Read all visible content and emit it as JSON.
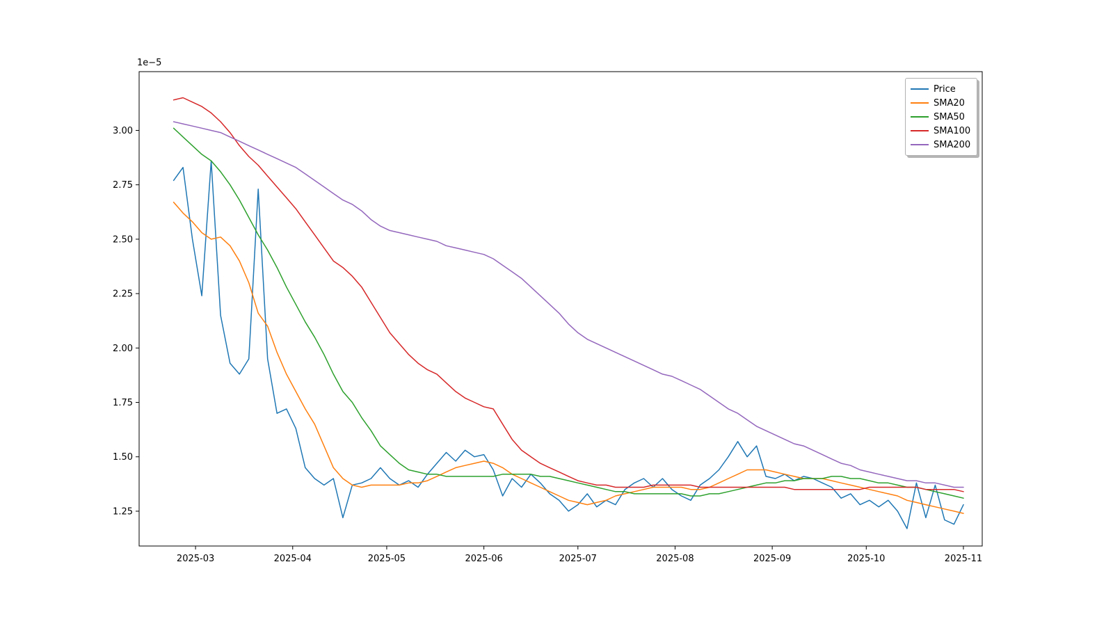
{
  "figure": {
    "background": "#ffffff"
  },
  "chart_data": {
    "type": "line",
    "title": "",
    "xlabel": "",
    "ylabel": "",
    "offset_text": "1e−5",
    "grid": false,
    "legend_position": "upper right",
    "xlim": [
      -11,
      258
    ],
    "ylim": [
      1.09,
      3.27
    ],
    "xtick_days": [
      7,
      38,
      68,
      99,
      129,
      160,
      191,
      221,
      252
    ],
    "xtick_labels": [
      "2025-03",
      "2025-04",
      "2025-05",
      "2025-06",
      "2025-07",
      "2025-08",
      "2025-09",
      "2025-10",
      "2025-11"
    ],
    "ytick_values": [
      1.25,
      1.5,
      1.75,
      2.0,
      2.25,
      2.5,
      2.75,
      3.0
    ],
    "ytick_labels": [
      "1.25",
      "1.50",
      "1.75",
      "2.00",
      "2.25",
      "2.50",
      "2.75",
      "3.00"
    ],
    "x": [
      0,
      3,
      6,
      9,
      12,
      15,
      18,
      21,
      24,
      27,
      30,
      33,
      36,
      39,
      42,
      45,
      48,
      51,
      54,
      57,
      60,
      63,
      66,
      69,
      72,
      75,
      78,
      81,
      84,
      87,
      90,
      93,
      96,
      99,
      102,
      105,
      108,
      111,
      114,
      117,
      120,
      123,
      126,
      129,
      132,
      135,
      138,
      141,
      144,
      147,
      150,
      153,
      156,
      159,
      162,
      165,
      168,
      171,
      174,
      177,
      180,
      183,
      186,
      189,
      192,
      195,
      198,
      201,
      204,
      207,
      210,
      213,
      216,
      219,
      222,
      225,
      228,
      231,
      234,
      237,
      240,
      243,
      246,
      249,
      252
    ],
    "series": [
      {
        "name": "Price",
        "color": "#1f77b4",
        "values": [
          2.77,
          2.83,
          2.5,
          2.24,
          2.86,
          2.15,
          1.93,
          1.88,
          1.95,
          2.73,
          1.95,
          1.7,
          1.72,
          1.63,
          1.45,
          1.4,
          1.37,
          1.4,
          1.22,
          1.37,
          1.38,
          1.4,
          1.45,
          1.4,
          1.37,
          1.39,
          1.36,
          1.42,
          1.47,
          1.52,
          1.48,
          1.53,
          1.5,
          1.51,
          1.44,
          1.32,
          1.4,
          1.36,
          1.42,
          1.38,
          1.33,
          1.3,
          1.25,
          1.28,
          1.33,
          1.27,
          1.3,
          1.28,
          1.35,
          1.38,
          1.4,
          1.36,
          1.4,
          1.35,
          1.32,
          1.3,
          1.37,
          1.4,
          1.44,
          1.5,
          1.57,
          1.5,
          1.55,
          1.41,
          1.4,
          1.42,
          1.39,
          1.41,
          1.4,
          1.38,
          1.36,
          1.31,
          1.33,
          1.28,
          1.3,
          1.27,
          1.3,
          1.25,
          1.17,
          1.38,
          1.22,
          1.37,
          1.21,
          1.19,
          1.28
        ]
      },
      {
        "name": "SMA20",
        "color": "#ff7f0e",
        "values": [
          2.67,
          2.62,
          2.58,
          2.53,
          2.5,
          2.51,
          2.47,
          2.4,
          2.3,
          2.16,
          2.1,
          1.98,
          1.88,
          1.8,
          1.72,
          1.65,
          1.55,
          1.45,
          1.4,
          1.37,
          1.36,
          1.37,
          1.37,
          1.37,
          1.37,
          1.38,
          1.38,
          1.39,
          1.41,
          1.43,
          1.45,
          1.46,
          1.47,
          1.48,
          1.47,
          1.45,
          1.42,
          1.4,
          1.38,
          1.36,
          1.34,
          1.32,
          1.3,
          1.29,
          1.28,
          1.29,
          1.3,
          1.32,
          1.33,
          1.34,
          1.35,
          1.36,
          1.36,
          1.36,
          1.36,
          1.35,
          1.35,
          1.36,
          1.38,
          1.4,
          1.42,
          1.44,
          1.44,
          1.44,
          1.43,
          1.42,
          1.41,
          1.4,
          1.4,
          1.4,
          1.39,
          1.38,
          1.37,
          1.36,
          1.35,
          1.34,
          1.33,
          1.32,
          1.3,
          1.29,
          1.28,
          1.27,
          1.26,
          1.25,
          1.24
        ]
      },
      {
        "name": "SMA50",
        "color": "#2ca02c",
        "values": [
          3.01,
          2.97,
          2.93,
          2.89,
          2.86,
          2.81,
          2.75,
          2.68,
          2.6,
          2.52,
          2.45,
          2.37,
          2.28,
          2.2,
          2.12,
          2.05,
          1.97,
          1.88,
          1.8,
          1.75,
          1.68,
          1.62,
          1.55,
          1.51,
          1.47,
          1.44,
          1.43,
          1.42,
          1.42,
          1.41,
          1.41,
          1.41,
          1.41,
          1.41,
          1.41,
          1.42,
          1.42,
          1.42,
          1.42,
          1.41,
          1.41,
          1.4,
          1.39,
          1.38,
          1.37,
          1.36,
          1.35,
          1.34,
          1.34,
          1.33,
          1.33,
          1.33,
          1.33,
          1.33,
          1.33,
          1.32,
          1.32,
          1.33,
          1.33,
          1.34,
          1.35,
          1.36,
          1.37,
          1.38,
          1.38,
          1.39,
          1.39,
          1.4,
          1.4,
          1.4,
          1.41,
          1.41,
          1.4,
          1.4,
          1.39,
          1.38,
          1.38,
          1.37,
          1.36,
          1.36,
          1.35,
          1.34,
          1.33,
          1.32,
          1.31
        ]
      },
      {
        "name": "SMA100",
        "color": "#d62728",
        "values": [
          3.14,
          3.15,
          3.13,
          3.11,
          3.08,
          3.04,
          2.99,
          2.93,
          2.88,
          2.84,
          2.79,
          2.74,
          2.69,
          2.64,
          2.58,
          2.52,
          2.46,
          2.4,
          2.37,
          2.33,
          2.28,
          2.21,
          2.14,
          2.07,
          2.02,
          1.97,
          1.93,
          1.9,
          1.88,
          1.84,
          1.8,
          1.77,
          1.75,
          1.73,
          1.72,
          1.65,
          1.58,
          1.53,
          1.5,
          1.47,
          1.45,
          1.43,
          1.41,
          1.39,
          1.38,
          1.37,
          1.37,
          1.36,
          1.36,
          1.36,
          1.36,
          1.37,
          1.37,
          1.37,
          1.37,
          1.37,
          1.36,
          1.36,
          1.36,
          1.36,
          1.36,
          1.36,
          1.36,
          1.36,
          1.36,
          1.36,
          1.35,
          1.35,
          1.35,
          1.35,
          1.35,
          1.35,
          1.35,
          1.35,
          1.36,
          1.36,
          1.36,
          1.36,
          1.36,
          1.36,
          1.35,
          1.35,
          1.35,
          1.35,
          1.34
        ]
      },
      {
        "name": "SMA200",
        "color": "#9467bd",
        "values": [
          3.04,
          3.03,
          3.02,
          3.01,
          3.0,
          2.99,
          2.97,
          2.95,
          2.93,
          2.91,
          2.89,
          2.87,
          2.85,
          2.83,
          2.8,
          2.77,
          2.74,
          2.71,
          2.68,
          2.66,
          2.63,
          2.59,
          2.56,
          2.54,
          2.53,
          2.52,
          2.51,
          2.5,
          2.49,
          2.47,
          2.46,
          2.45,
          2.44,
          2.43,
          2.41,
          2.38,
          2.35,
          2.32,
          2.28,
          2.24,
          2.2,
          2.16,
          2.11,
          2.07,
          2.04,
          2.02,
          2.0,
          1.98,
          1.96,
          1.94,
          1.92,
          1.9,
          1.88,
          1.87,
          1.85,
          1.83,
          1.81,
          1.78,
          1.75,
          1.72,
          1.7,
          1.67,
          1.64,
          1.62,
          1.6,
          1.58,
          1.56,
          1.55,
          1.53,
          1.51,
          1.49,
          1.47,
          1.46,
          1.44,
          1.43,
          1.42,
          1.41,
          1.4,
          1.39,
          1.39,
          1.38,
          1.38,
          1.37,
          1.36,
          1.36
        ]
      }
    ]
  }
}
